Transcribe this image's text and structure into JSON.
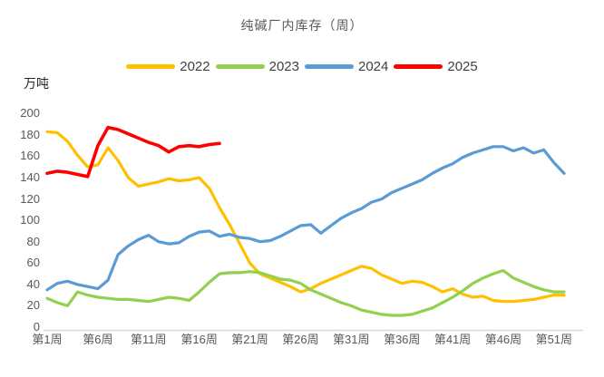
{
  "chart": {
    "title": "纯碱厂内库存（周）",
    "unit_label": "万吨"
  },
  "chart_data": {
    "type": "line",
    "title": "纯碱厂内库存（周）",
    "ylabel": "万吨",
    "ylim": [
      0,
      200
    ],
    "y_ticks": [
      0,
      20,
      40,
      60,
      80,
      100,
      120,
      140,
      160,
      180,
      200
    ],
    "x_axis": {
      "unit": "week",
      "weeks_span": 52,
      "visible_tick_labels": [
        "第1周",
        "第6周",
        "第11周",
        "第16周",
        "第21周",
        "第26周",
        "第31周",
        "第36周",
        "第41周",
        "第46周",
        "第51周"
      ],
      "visible_tick_weeks": [
        1,
        6,
        11,
        16,
        21,
        26,
        31,
        36,
        41,
        46,
        51
      ]
    },
    "legend_position": "top",
    "grid": false,
    "series": [
      {
        "name": "2022",
        "color": "#FFC000",
        "start_week": 1,
        "values": [
          183,
          182,
          174,
          161,
          150,
          152,
          168,
          156,
          140,
          132,
          134,
          136,
          139,
          137,
          138,
          140,
          130,
          112,
          96,
          78,
          60,
          50,
          46,
          42,
          38,
          33,
          36,
          41,
          45,
          49,
          53,
          57,
          55,
          49,
          45,
          41,
          43,
          42,
          38,
          33,
          36,
          31,
          28,
          29,
          25,
          24,
          24,
          25,
          26,
          28,
          30,
          30
        ]
      },
      {
        "name": "2023",
        "color": "#92D050",
        "start_week": 1,
        "values": [
          27,
          23,
          20,
          33,
          30,
          28,
          27,
          26,
          26,
          25,
          24,
          26,
          28,
          27,
          25,
          33,
          42,
          50,
          51,
          51,
          52,
          51,
          48,
          45,
          44,
          41,
          35,
          31,
          27,
          23,
          20,
          16,
          14,
          12,
          11,
          11,
          12,
          15,
          18,
          23,
          28,
          34,
          41,
          46,
          50,
          53,
          46,
          42,
          38,
          35,
          33,
          33
        ]
      },
      {
        "name": "2024",
        "color": "#5B9BD5",
        "start_week": 1,
        "values": [
          35,
          41,
          43,
          40,
          38,
          36,
          44,
          68,
          76,
          82,
          86,
          80,
          78,
          79,
          85,
          89,
          90,
          85,
          87,
          84,
          83,
          80,
          81,
          85,
          90,
          95,
          96,
          88,
          95,
          102,
          107,
          111,
          117,
          120,
          126,
          130,
          134,
          138,
          144,
          149,
          153,
          159,
          163,
          166,
          169,
          169,
          165,
          168,
          163,
          166,
          154,
          144
        ]
      },
      {
        "name": "2025",
        "color": "#FF0000",
        "start_week": 1,
        "values": [
          144,
          146,
          145,
          143,
          141,
          170,
          187,
          185,
          181,
          177,
          173,
          170,
          164,
          169,
          170,
          169,
          171,
          172
        ]
      }
    ]
  }
}
